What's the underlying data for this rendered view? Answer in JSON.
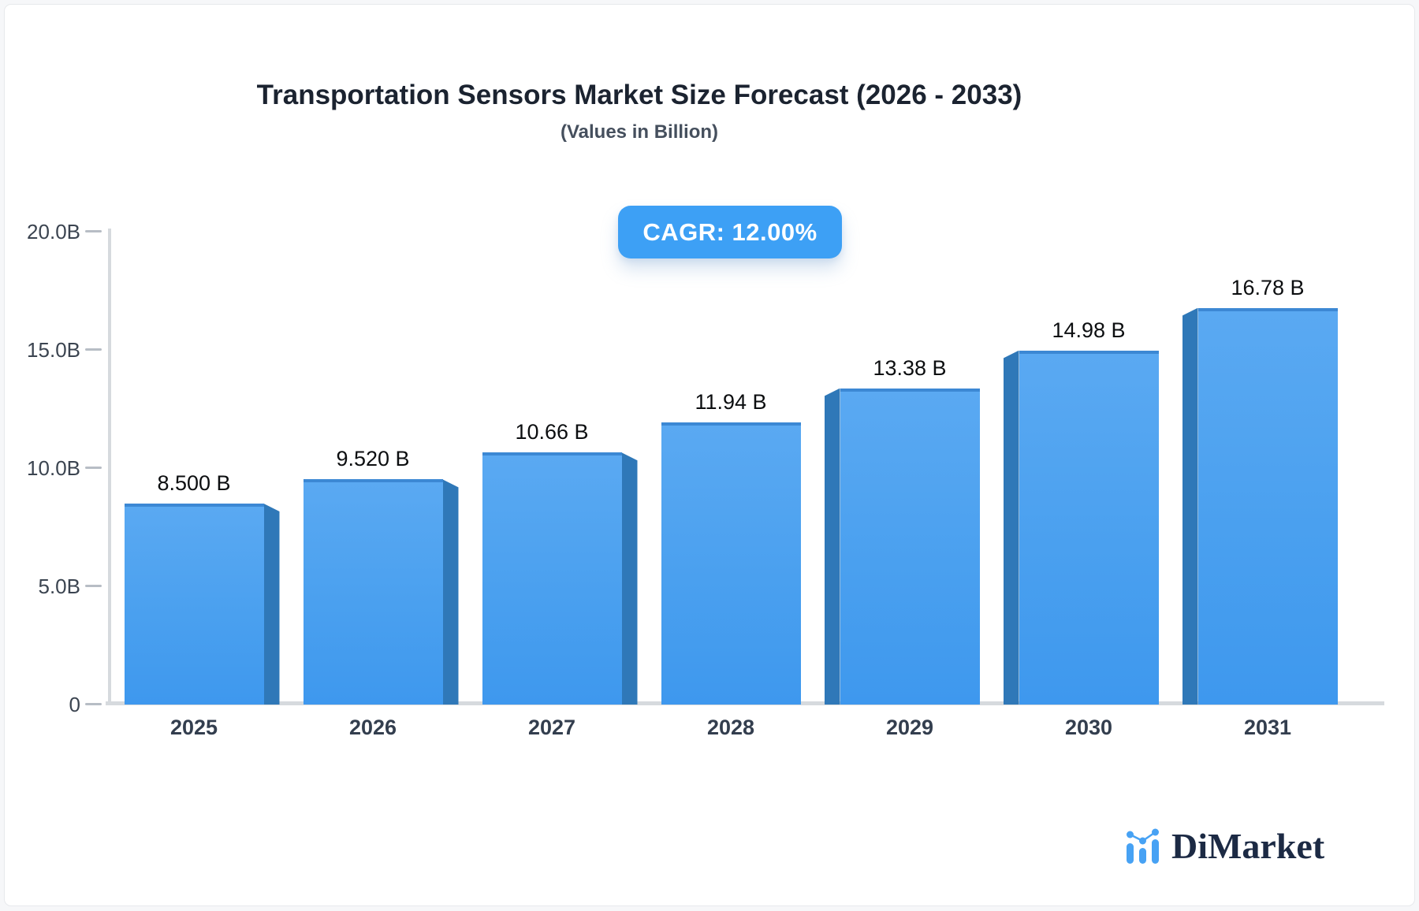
{
  "header": {
    "title": "Transportation Sensors Market Size Forecast (2026 - 2033)",
    "subtitle": "(Values in Billion)",
    "cagr_badge": "CAGR: 12.00%"
  },
  "chart_data": {
    "type": "bar",
    "title": "Transportation Sensors Market Size Forecast (2026 - 2033)",
    "subtitle": "(Values in Billion)",
    "unit": "Billion",
    "cagr": "12.00%",
    "categories": [
      "2025",
      "2026",
      "2027",
      "2028",
      "2029",
      "2030",
      "2031"
    ],
    "values": [
      8.5,
      9.52,
      10.66,
      11.94,
      13.38,
      14.98,
      16.78
    ],
    "value_labels": [
      "8.500 B",
      "9.520 B",
      "10.66 B",
      "11.94 B",
      "13.38 B",
      "14.98 B",
      "16.78 B"
    ],
    "ylim": [
      0,
      20
    ],
    "y_ticks": [
      {
        "value": 0,
        "label": "0"
      },
      {
        "value": 5,
        "label": "5.0B"
      },
      {
        "value": 10,
        "label": "10.0B"
      },
      {
        "value": 15,
        "label": "15.0B"
      },
      {
        "value": 20,
        "label": "20.0B"
      }
    ],
    "grid": false,
    "legend": "none",
    "bar_style": "3d-perspective"
  },
  "colors": {
    "accent_blue": "#3da0f5",
    "bar_face_top": "#5aa9f2",
    "bar_face_bottom": "#3e98ee",
    "bar_side": "#2f78b8",
    "bar_top_edge": "#3c88d4",
    "axis_line": "#d6dade",
    "tick": "#b7bdc5",
    "y_label_color": "#3b4450",
    "x_label_color": "#333e4e",
    "value_label_color": "#0c0e10",
    "brand_navy": "#1c2a44"
  },
  "footer": {
    "brand": "DiMarket",
    "logo": "bar-chart-logo-icon"
  }
}
